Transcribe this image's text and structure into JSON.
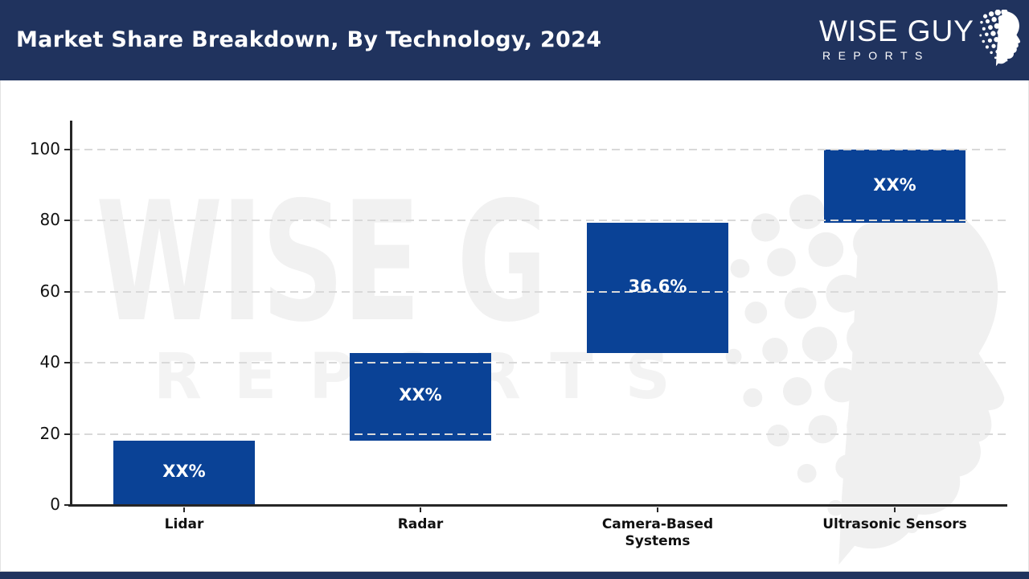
{
  "header": {
    "title": "Market Share Breakdown, By Technology, 2024",
    "logo": {
      "name": "WISE GUY",
      "sub": "REPORTS"
    }
  },
  "watermark": {
    "line1": "WISE GUY",
    "line2": "REPORTS"
  },
  "chart_data": {
    "type": "bar",
    "subtype": "floating-waterfall",
    "title": "Market Share Breakdown, By Technology, 2024",
    "categories": [
      "Lidar",
      "Radar",
      "Camera-Based Systems",
      "Ultrasonic Sensors"
    ],
    "series": [
      {
        "name": "Market share (%)",
        "segments": [
          {
            "category": "Lidar",
            "start": 0,
            "end": 18.2,
            "label": "XX%"
          },
          {
            "category": "Radar",
            "start": 18.2,
            "end": 42.8,
            "label": "XX%"
          },
          {
            "category": "Camera-Based Systems",
            "start": 42.8,
            "end": 79.4,
            "label": "36.6%"
          },
          {
            "category": "Ultrasonic Sensors",
            "start": 79.4,
            "end": 100,
            "label": "XX%"
          }
        ]
      }
    ],
    "xlabel": "",
    "ylabel": "",
    "yticks": [
      0,
      20,
      40,
      60,
      80,
      100
    ],
    "ylim": [
      0,
      107
    ],
    "grid": "horizontal-dashed",
    "grid_on_top": true,
    "legend": "none",
    "bar_color": "#0a4296",
    "bar_label_color": "#ffffff"
  },
  "colors": {
    "header_bg": "#20335e",
    "footer_bg": "#20335e",
    "bar": "#0a4296",
    "grid": "#d9d9d9",
    "axis": "#262626",
    "tick_text": "#111111",
    "watermark": "#f1f1f1"
  }
}
